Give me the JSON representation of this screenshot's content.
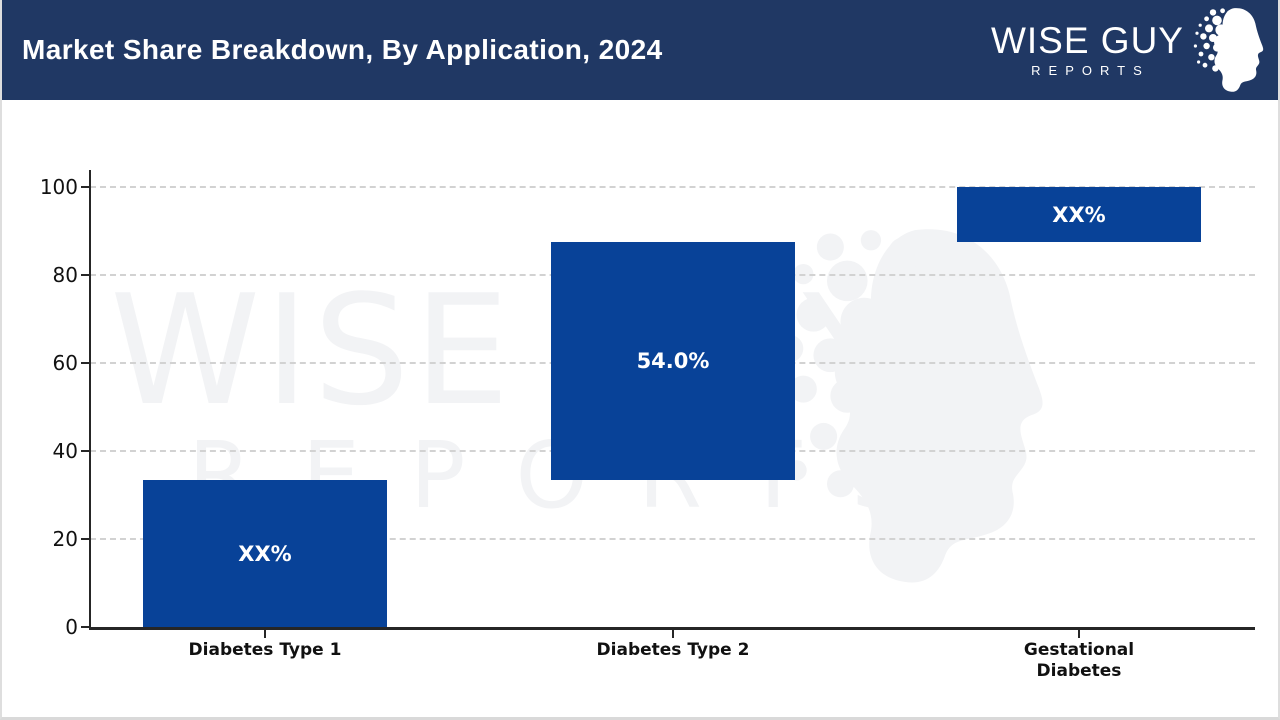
{
  "header": {
    "title": "Market Share Breakdown, By Application, 2024",
    "bg_color": "#203864",
    "logo": {
      "line1": "WISE GUY",
      "line2": "REPORTS",
      "head_icon": "dotted-head-profile"
    }
  },
  "watermark": {
    "line1": "WISE GUY",
    "line2": "REPORTS",
    "head_icon": "dotted-head-profile",
    "color": "#f2f3f5"
  },
  "chart_data": {
    "type": "bar",
    "variant": "waterfall",
    "title": "Market Share Breakdown, By Application, 2024",
    "categories": [
      "Diabetes Type 1",
      "Diabetes Type 2",
      "Gestational Diabetes"
    ],
    "series": [
      {
        "category": "Diabetes Type 1",
        "start": 0,
        "end": 33.4,
        "value": 33.4,
        "value_label": "XX%"
      },
      {
        "category": "Diabetes Type 2",
        "start": 33.4,
        "end": 87.4,
        "value": 54.0,
        "value_label": "54.0%"
      },
      {
        "category": "Gestational Diabetes",
        "start": 87.4,
        "end": 100,
        "value": 12.6,
        "value_label": "XX%"
      }
    ],
    "xlabel": "",
    "ylabel": "",
    "ylim": [
      0,
      100
    ],
    "yticks": [
      0,
      20,
      40,
      60,
      80,
      100
    ],
    "grid": {
      "horizontal": true,
      "style": "dashed",
      "color": "#d2d2d2"
    },
    "legend": "none",
    "bar_color": "#084298",
    "bar_label_color": "#ffffff",
    "axis_color": "#262626"
  }
}
